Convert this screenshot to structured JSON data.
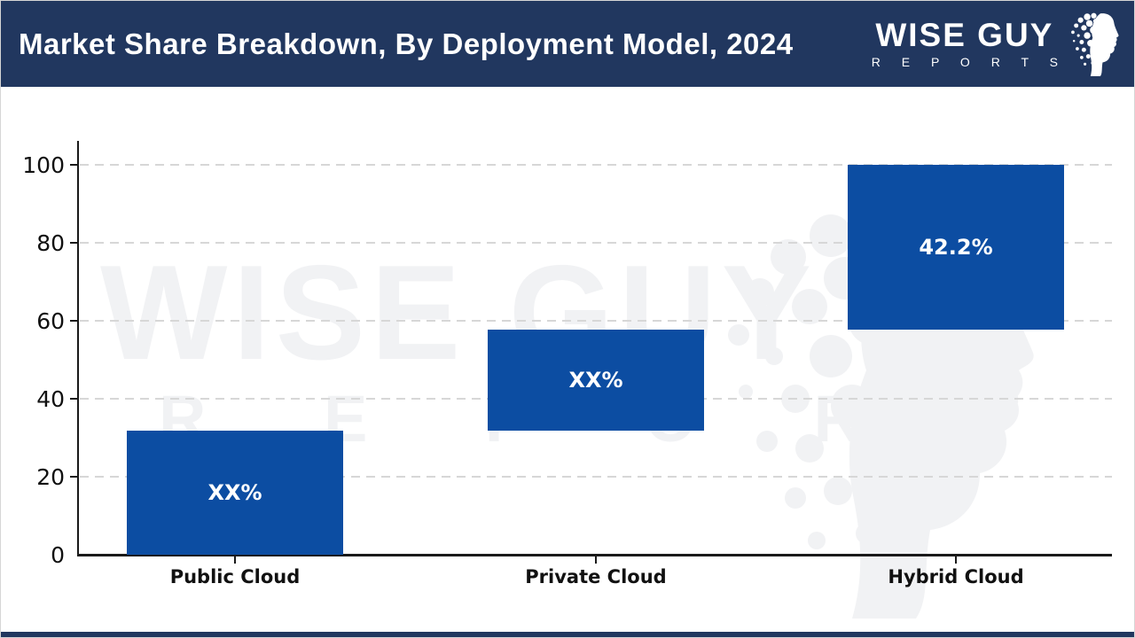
{
  "header": {
    "title": "Market Share Breakdown, By Deployment Model, 2024",
    "background_color": "#21375f",
    "logo": {
      "line1": "WISE GUY",
      "line2": "R E P O R T S"
    }
  },
  "watermark": {
    "line1": "WISE GUY",
    "line2": "R E P O R T S"
  },
  "chart_data": {
    "type": "bar",
    "variant": "stacked-waterfall",
    "title": "Market Share Breakdown, By Deployment Model, 2024",
    "categories": [
      "Public Cloud",
      "Private Cloud",
      "Hybrid Cloud"
    ],
    "series": [
      {
        "name": "Public Cloud",
        "start": 0,
        "end": 31.8,
        "label": "XX%"
      },
      {
        "name": "Private Cloud",
        "start": 31.8,
        "end": 57.8,
        "label": "XX%"
      },
      {
        "name": "Hybrid Cloud",
        "start": 57.8,
        "end": 100,
        "label": "42.2%"
      }
    ],
    "yticks": [
      0,
      20,
      40,
      60,
      80,
      100
    ],
    "ylim": [
      0,
      106
    ],
    "grid": true,
    "grid_style": "dashed",
    "legend_position": "none",
    "bar_color": "#0c4da2",
    "bar_label_color": "#ffffff",
    "axis_color": "#1a1a1a",
    "gridline_color": "#d7d7d7",
    "xlabel": "",
    "ylabel": ""
  },
  "footer": {
    "bar_color": "#21375f"
  }
}
